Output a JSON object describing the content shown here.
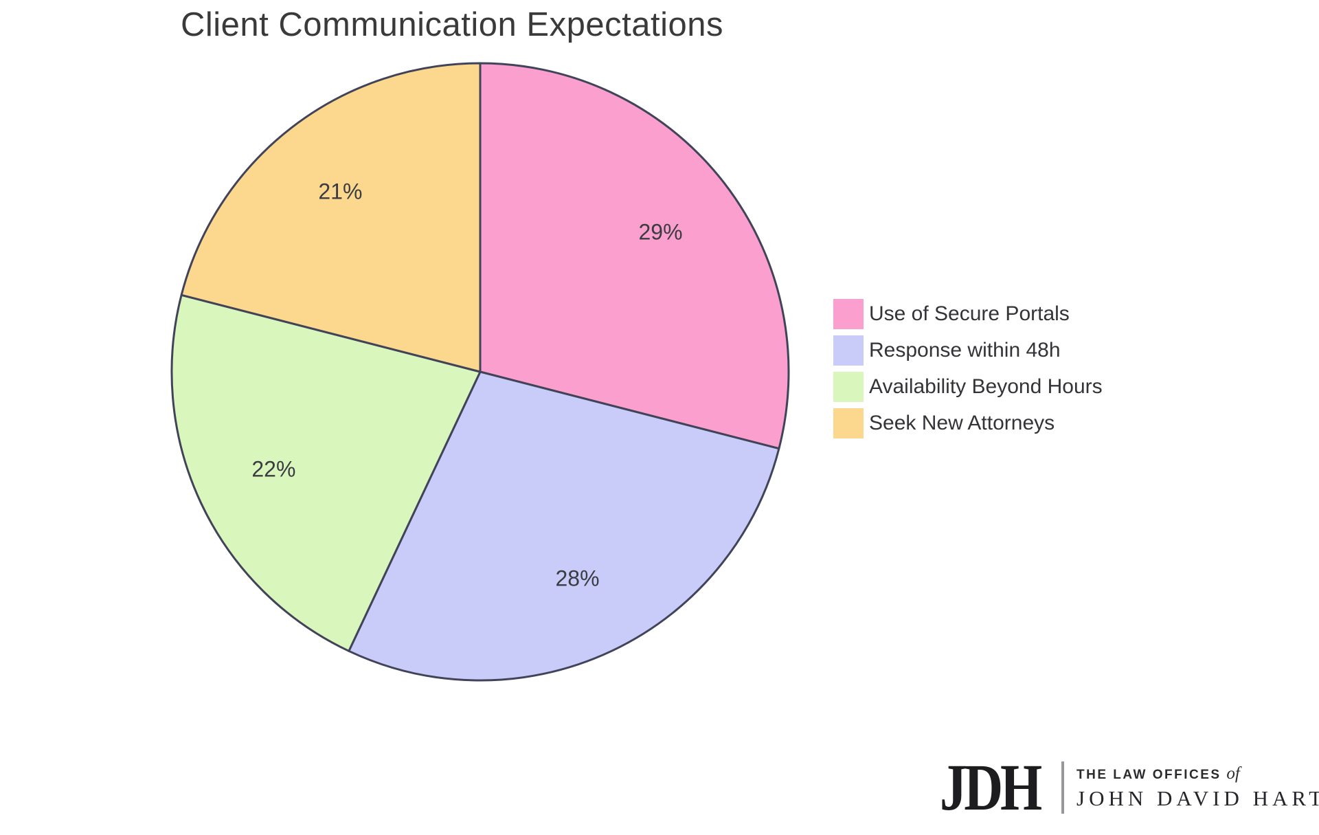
{
  "title": "Client Communication Expectations",
  "chart_data": {
    "type": "pie",
    "title": "Client Communication Expectations",
    "values_unit": "%",
    "direction": "clockwise",
    "start_angle": "12-oclock",
    "legend_position": "right",
    "background_color": "#ffffff",
    "outline_color": "#414459",
    "slice_label_color": "#3b3b42",
    "slices": [
      {
        "label": "Use of Secure Portals",
        "value": 29,
        "display": "29%",
        "color": "#FA9FCE"
      },
      {
        "label": "Response within 48h",
        "value": 28,
        "display": "28%",
        "color": "#C9CCF8"
      },
      {
        "label": "Availability Beyond Hours",
        "value": 22,
        "display": "22%",
        "color": "#D9F6BC"
      },
      {
        "label": "Seek New Attorneys",
        "value": 21,
        "display": "21%",
        "color": "#FBD88D"
      }
    ]
  },
  "branding": {
    "monogram": "JDH",
    "tagline_prefix": "THE LAW OFFICES",
    "tagline_of": "of",
    "name": "JOHN DAVID HART"
  }
}
